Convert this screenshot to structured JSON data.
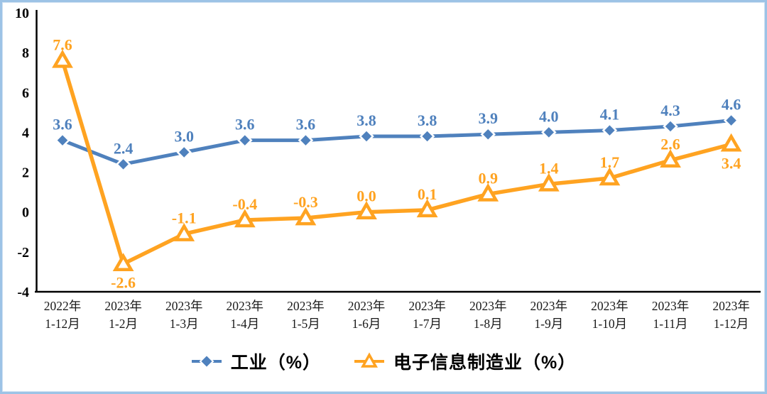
{
  "chart_data": {
    "type": "line",
    "title": "",
    "xlabel": "",
    "ylabel": "",
    "ylim": [
      -4,
      10
    ],
    "yticks": [
      10,
      8,
      6,
      4,
      2,
      0,
      -2,
      -4
    ],
    "grid": false,
    "legend_position": "bottom",
    "categories": [
      {
        "line1": "2022年",
        "line2": "1-12月"
      },
      {
        "line1": "2023年",
        "line2": "1-2月"
      },
      {
        "line1": "2023年",
        "line2": "1-3月"
      },
      {
        "line1": "2023年",
        "line2": "1-4月"
      },
      {
        "line1": "2023年",
        "line2": "1-5月"
      },
      {
        "line1": "2023年",
        "line2": "1-6月"
      },
      {
        "line1": "2023年",
        "line2": "1-7月"
      },
      {
        "line1": "2023年",
        "line2": "1-8月"
      },
      {
        "line1": "2023年",
        "line2": "1-9月"
      },
      {
        "line1": "2023年",
        "line2": "1-10月"
      },
      {
        "line1": "2023年",
        "line2": "1-11月"
      },
      {
        "line1": "2023年",
        "line2": "1-12月"
      }
    ],
    "series": [
      {
        "name": "工业（%）",
        "marker": "diamond",
        "color": "#4F81BD",
        "values": [
          3.6,
          2.4,
          3.0,
          3.6,
          3.6,
          3.8,
          3.8,
          3.9,
          4.0,
          4.1,
          4.3,
          4.6
        ],
        "labels": [
          "3.6",
          "2.4",
          "3.0",
          "3.6",
          "3.6",
          "3.8",
          "3.8",
          "3.9",
          "4.0",
          "4.1",
          "4.3",
          "4.6"
        ],
        "labels_below_indices": []
      },
      {
        "name": "电子信息制造业（%）",
        "marker": "triangle-open",
        "color": "#FFA321",
        "values": [
          7.6,
          -2.6,
          -1.1,
          -0.4,
          -0.3,
          0.0,
          0.1,
          0.9,
          1.4,
          1.7,
          2.6,
          3.4
        ],
        "labels": [
          "7.6",
          "-2.6",
          "-1.1",
          "-0.4",
          "-0.3",
          "0.0",
          "0.1",
          "0.9",
          "1.4",
          "1.7",
          "2.6",
          "3.4"
        ],
        "labels_below_indices": [
          1,
          11
        ]
      }
    ]
  },
  "colors": {
    "frame": "#9DC3E6",
    "axis": "#000000",
    "background": "#FFFFFF"
  }
}
